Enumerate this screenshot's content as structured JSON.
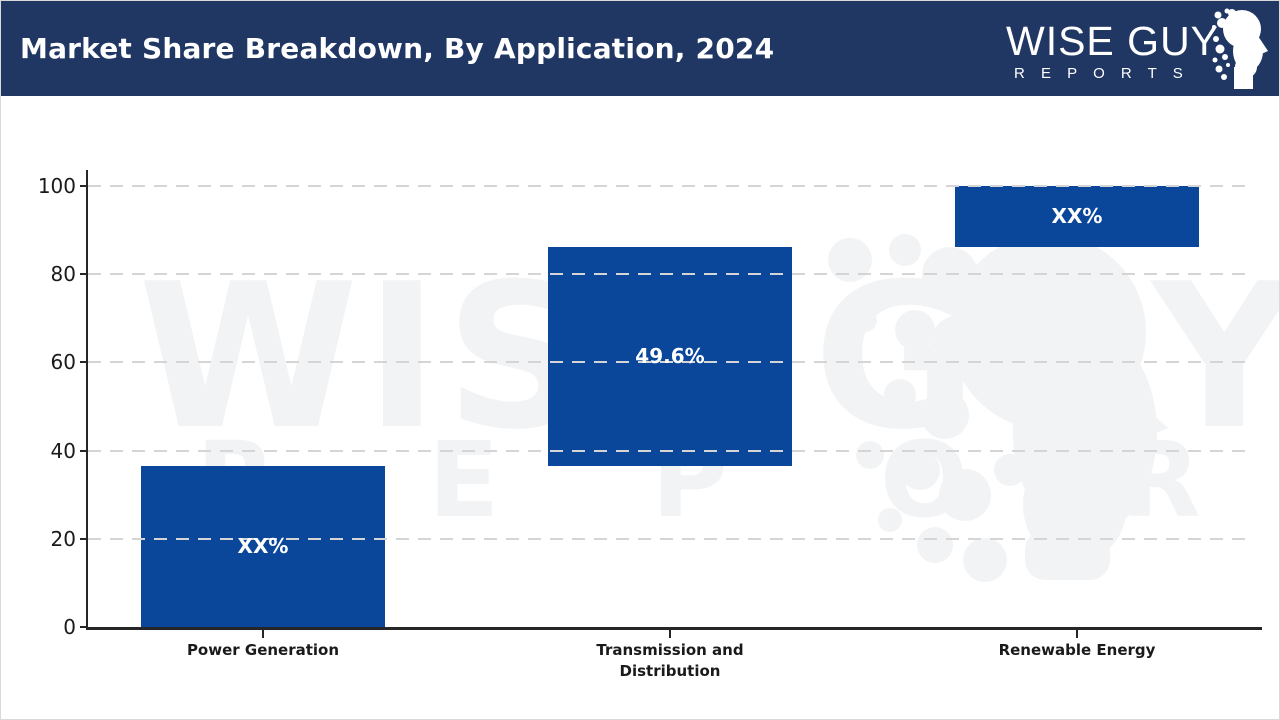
{
  "page": {
    "title": "Market Share Breakdown, By Application, 2024"
  },
  "logo": {
    "name_top": "WISE GUY",
    "name_bottom": "R E P O R T S",
    "icon": "dotted-head-profile-icon"
  },
  "watermark": {
    "line1": "WISE GUY",
    "line2": "R E P O R T S",
    "icon": "dotted-head-profile-watermark"
  },
  "colors": {
    "header_bg": "#203764",
    "bar": "#0a479b",
    "grid": "#d5d5d5",
    "axis": "#262626",
    "bar_label": "#ffffff",
    "tick_text": "#1a1a1a",
    "watermark": "#f2f3f5"
  },
  "chart_data": {
    "type": "bar",
    "subtype": "waterfall",
    "title": "Market Share Breakdown, By Application, 2024",
    "categories": [
      "Power Generation",
      "Transmission and Distribution",
      "Renewable Energy"
    ],
    "segments": [
      {
        "category": "Power Generation",
        "start": 0,
        "end": 36.6,
        "label": "XX%"
      },
      {
        "category": "Transmission and Distribution",
        "start": 36.6,
        "end": 86.2,
        "label": "49.6%"
      },
      {
        "category": "Renewable Energy",
        "start": 86.2,
        "end": 100,
        "label": "XX%"
      }
    ],
    "xlabel": "",
    "ylabel": "",
    "ylim": [
      0,
      100
    ],
    "yticks": [
      0,
      20,
      40,
      60,
      80,
      100
    ],
    "grid": "dashed-horizontal",
    "legend": "none"
  }
}
